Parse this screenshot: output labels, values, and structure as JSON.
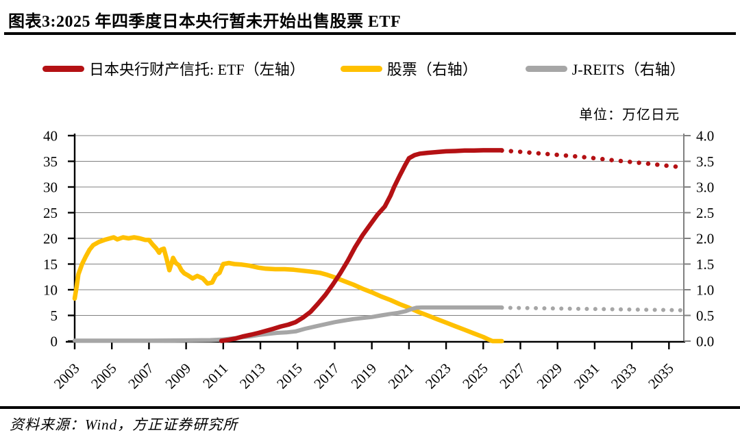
{
  "header": {
    "title": "图表3:2025 年四季度日本央行暂未开始出售股票 ETF"
  },
  "legend": [
    {
      "key": "etf",
      "label": "日本央行财产信托: ETF（左轴）",
      "color": "#B41114"
    },
    {
      "key": "stocks",
      "label": "股票（右轴）",
      "color": "#FFC000"
    },
    {
      "key": "jreits",
      "label": "J-REITS（右轴）",
      "color": "#A6A6A6"
    }
  ],
  "unit_label": "单位：万亿日元",
  "footer": {
    "source": "资料来源：Wind，方正证券研究所"
  },
  "colors": {
    "etf": "#B41114",
    "stocks": "#FFC000",
    "jreits": "#A6A6A6",
    "gridline": "#7F7F7F",
    "left_axis": "#000000",
    "right_axis": "#808080"
  },
  "chart_data": {
    "type": "line",
    "title": "2025 年四季度日本央行暂未开始出售股票 ETF",
    "unit": "万亿日元",
    "grid": true,
    "x_axis": {
      "range": [
        2003,
        2035.8
      ],
      "ticks": [
        2003,
        2005,
        2007,
        2009,
        2011,
        2013,
        2015,
        2017,
        2019,
        2021,
        2023,
        2025,
        2027,
        2029,
        2031,
        2033,
        2035
      ]
    },
    "left_axis": {
      "min": 0,
      "max": 40,
      "step": 5,
      "tick_labels": [
        "0",
        "5",
        "10",
        "15",
        "20",
        "25",
        "30",
        "35",
        "40"
      ]
    },
    "right_axis": {
      "min": 0,
      "max": 4,
      "step": 0.5,
      "tick_labels": [
        "0.0",
        "0.5",
        "1.0",
        "1.5",
        "2.0",
        "2.5",
        "3.0",
        "3.5",
        "4.0"
      ]
    },
    "draw_order": [
      1,
      2,
      0
    ],
    "series": [
      {
        "key": "etf",
        "name": "日本央行财产信托：ETF（左轴）",
        "axis": "left",
        "color": "#B41114",
        "line_width": 6.5,
        "segments": [
          {
            "style": "solid",
            "points": [
              [
                2010.9,
                0.05
              ],
              [
                2011.3,
                0.25
              ],
              [
                2011.7,
                0.55
              ],
              [
                2012.1,
                0.95
              ],
              [
                2012.5,
                1.25
              ],
              [
                2012.9,
                1.6
              ],
              [
                2013.3,
                2.0
              ],
              [
                2013.7,
                2.4
              ],
              [
                2014.1,
                2.85
              ],
              [
                2014.5,
                3.2
              ],
              [
                2014.9,
                3.7
              ],
              [
                2015.3,
                4.6
              ],
              [
                2015.7,
                5.7
              ],
              [
                2016.1,
                7.3
              ],
              [
                2016.5,
                9.0
              ],
              [
                2016.9,
                11.0
              ],
              [
                2017.3,
                13.2
              ],
              [
                2017.7,
                15.6
              ],
              [
                2018.1,
                18.3
              ],
              [
                2018.5,
                20.6
              ],
              [
                2018.9,
                22.6
              ],
              [
                2019.3,
                24.6
              ],
              [
                2019.7,
                26.2
              ],
              [
                2020.0,
                28.3
              ],
              [
                2020.2,
                30.0
              ],
              [
                2020.5,
                32.2
              ],
              [
                2020.8,
                34.3
              ],
              [
                2021.0,
                35.6
              ],
              [
                2021.3,
                36.2
              ],
              [
                2021.6,
                36.5
              ],
              [
                2022.0,
                36.65
              ],
              [
                2022.5,
                36.8
              ],
              [
                2023.0,
                36.95
              ],
              [
                2023.5,
                37.0
              ],
              [
                2024.0,
                37.1
              ],
              [
                2024.5,
                37.1
              ],
              [
                2025.0,
                37.15
              ],
              [
                2025.5,
                37.15
              ],
              [
                2026.0,
                37.15
              ]
            ]
          },
          {
            "style": "dotted",
            "points": [
              [
                2026.0,
                37.1
              ],
              [
                2027,
                36.85
              ],
              [
                2028,
                36.55
              ],
              [
                2029,
                36.25
              ],
              [
                2030,
                35.95
              ],
              [
                2031,
                35.6
              ],
              [
                2032,
                35.2
              ],
              [
                2033,
                34.85
              ],
              [
                2034,
                34.5
              ],
              [
                2035,
                34.1
              ],
              [
                2035.7,
                33.85
              ]
            ]
          }
        ]
      },
      {
        "key": "stocks",
        "name": "股票（右轴）",
        "axis": "right",
        "color": "#FFC000",
        "line_width": 6.5,
        "segments": [
          {
            "style": "solid",
            "points": [
              [
                2003.0,
                0.83
              ],
              [
                2003.1,
                1.05
              ],
              [
                2003.2,
                1.3
              ],
              [
                2003.4,
                1.5
              ],
              [
                2003.6,
                1.65
              ],
              [
                2003.8,
                1.78
              ],
              [
                2004.0,
                1.87
              ],
              [
                2004.3,
                1.93
              ],
              [
                2004.6,
                1.97
              ],
              [
                2004.9,
                2.0
              ],
              [
                2005.1,
                2.02
              ],
              [
                2005.3,
                1.98
              ],
              [
                2005.6,
                2.02
              ],
              [
                2005.9,
                2.0
              ],
              [
                2006.2,
                2.02
              ],
              [
                2006.5,
                2.0
              ],
              [
                2006.8,
                1.97
              ],
              [
                2007.0,
                1.97
              ],
              [
                2007.2,
                1.88
              ],
              [
                2007.4,
                1.8
              ],
              [
                2007.55,
                1.72
              ],
              [
                2007.65,
                1.78
              ],
              [
                2007.8,
                1.8
              ],
              [
                2007.95,
                1.6
              ],
              [
                2008.1,
                1.38
              ],
              [
                2008.3,
                1.62
              ],
              [
                2008.45,
                1.52
              ],
              [
                2008.6,
                1.48
              ],
              [
                2008.75,
                1.38
              ],
              [
                2008.9,
                1.32
              ],
              [
                2009.1,
                1.28
              ],
              [
                2009.35,
                1.22
              ],
              [
                2009.6,
                1.27
              ],
              [
                2009.9,
                1.22
              ],
              [
                2010.15,
                1.12
              ],
              [
                2010.4,
                1.14
              ],
              [
                2010.6,
                1.28
              ],
              [
                2010.8,
                1.33
              ],
              [
                2011.0,
                1.5
              ],
              [
                2011.3,
                1.52
              ],
              [
                2011.6,
                1.5
              ],
              [
                2012.0,
                1.49
              ],
              [
                2012.4,
                1.47
              ],
              [
                2012.9,
                1.43
              ],
              [
                2013.3,
                1.41
              ],
              [
                2013.8,
                1.4
              ],
              [
                2014.3,
                1.4
              ],
              [
                2014.8,
                1.39
              ],
              [
                2015.3,
                1.37
              ],
              [
                2015.8,
                1.35
              ],
              [
                2016.2,
                1.33
              ],
              [
                2016.6,
                1.29
              ],
              [
                2017.0,
                1.24
              ],
              [
                2017.5,
                1.17
              ],
              [
                2018.0,
                1.1
              ],
              [
                2018.5,
                1.02
              ],
              [
                2019.0,
                0.95
              ],
              [
                2019.5,
                0.87
              ],
              [
                2020.0,
                0.8
              ],
              [
                2020.5,
                0.72
              ],
              [
                2021.0,
                0.65
              ],
              [
                2021.5,
                0.57
              ],
              [
                2022.0,
                0.5
              ],
              [
                2022.5,
                0.43
              ],
              [
                2023.0,
                0.36
              ],
              [
                2023.5,
                0.29
              ],
              [
                2024.0,
                0.22
              ],
              [
                2024.5,
                0.15
              ],
              [
                2025.0,
                0.08
              ],
              [
                2025.3,
                0.03
              ],
              [
                2025.5,
                0.0
              ],
              [
                2026.0,
                0.0
              ]
            ]
          }
        ]
      },
      {
        "key": "jreits",
        "name": "J-REITS（右轴）",
        "axis": "right",
        "color": "#A6A6A6",
        "line_width": 6,
        "segments": [
          {
            "style": "solid",
            "points": [
              [
                2003.0,
                0.01
              ],
              [
                2005,
                0.01
              ],
              [
                2007,
                0.01
              ],
              [
                2009,
                0.015
              ],
              [
                2010.3,
                0.02
              ],
              [
                2010.9,
                0.03
              ],
              [
                2011.4,
                0.05
              ],
              [
                2011.9,
                0.07
              ],
              [
                2012.4,
                0.09
              ],
              [
                2012.9,
                0.12
              ],
              [
                2013.4,
                0.14
              ],
              [
                2013.9,
                0.16
              ],
              [
                2014.4,
                0.17
              ],
              [
                2014.9,
                0.19
              ],
              [
                2015.4,
                0.24
              ],
              [
                2016.0,
                0.29
              ],
              [
                2016.5,
                0.33
              ],
              [
                2017.0,
                0.37
              ],
              [
                2017.5,
                0.4
              ],
              [
                2018.0,
                0.43
              ],
              [
                2018.5,
                0.45
              ],
              [
                2019.0,
                0.47
              ],
              [
                2019.5,
                0.5
              ],
              [
                2020.0,
                0.53
              ],
              [
                2020.4,
                0.55
              ],
              [
                2020.8,
                0.58
              ],
              [
                2021.1,
                0.62
              ],
              [
                2021.4,
                0.65
              ],
              [
                2021.7,
                0.655
              ],
              [
                2022.5,
                0.655
              ],
              [
                2023.5,
                0.655
              ],
              [
                2024.5,
                0.655
              ],
              [
                2025.5,
                0.655
              ],
              [
                2026.0,
                0.655
              ]
            ]
          },
          {
            "style": "dotted",
            "points": [
              [
                2026.0,
                0.65
              ],
              [
                2027,
                0.645
              ],
              [
                2028,
                0.64
              ],
              [
                2029,
                0.635
              ],
              [
                2030,
                0.63
              ],
              [
                2031,
                0.625
              ],
              [
                2032,
                0.62
              ],
              [
                2033,
                0.615
              ],
              [
                2034,
                0.61
              ],
              [
                2035,
                0.605
              ],
              [
                2035.7,
                0.6
              ]
            ]
          }
        ]
      }
    ]
  }
}
